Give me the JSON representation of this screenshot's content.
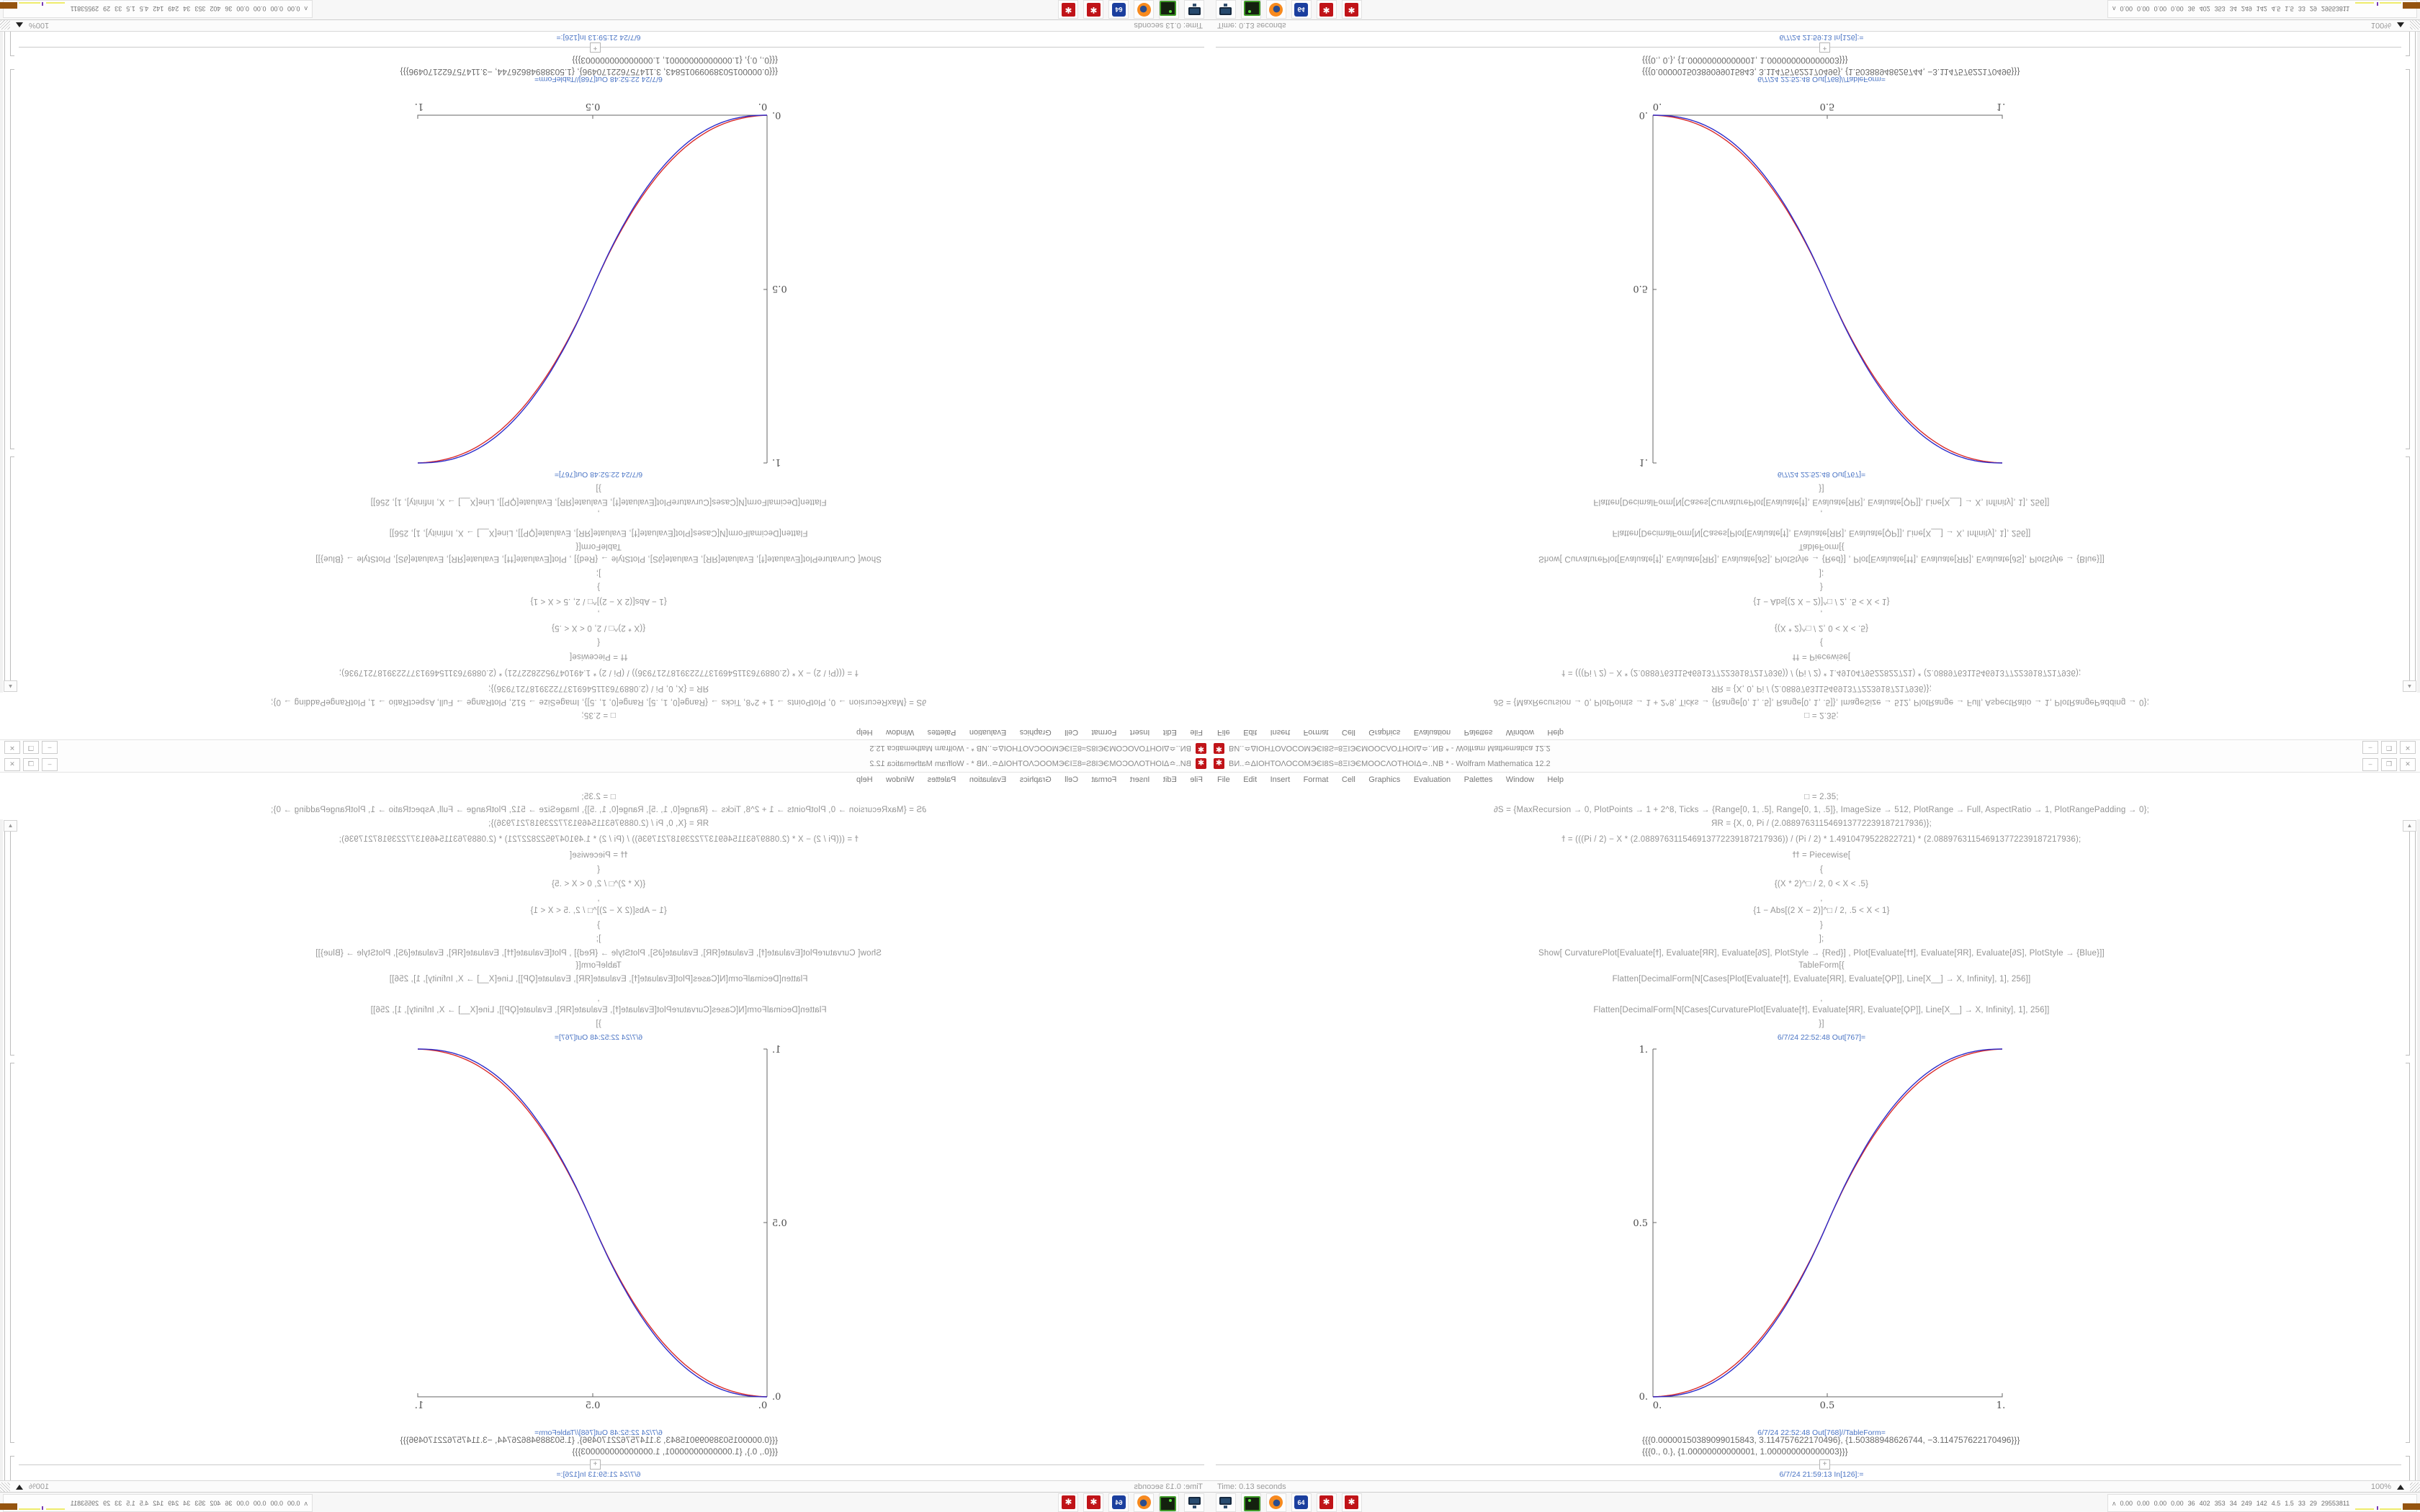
{
  "window": {
    "title": "ВИ..≏ΔΙΟΗΤΟΛΟϹΟΜЭЄΙ8S≈8ΞΙЭЄΜΟΟϹΛΟΤΗΟΙΔ≏..NB * - Wolfram Mathematica 12.2",
    "buttons": {
      "minimize": "–",
      "maximize": "❒",
      "close": "✕"
    },
    "menu": [
      "File",
      "Edit",
      "Insert",
      "Format",
      "Cell",
      "Graphics",
      "Evaluation",
      "Palettes",
      "Window",
      "Help"
    ]
  },
  "notebook": {
    "code_lines": [
      "□ = 2.35;",
      "∂S = {MaxRecursion → 0, PlotPoints → 1 + 2^8, Ticks → {Range[0, 1, .5], Range[0, 1, .5]}, ImageSize → 512, PlotRange → Full, AspectRatio → 1, PlotRangePadding → 0};",
      "ЯR = {X, 0, Pi / (2.088976311546913772239187217936)};",
      "ϯ = (((Pi / 2) − X * (2.088976311546913772239187217936)) / (Pi / 2) * 1.4910479522822721) * (2.088976311546913772239187217936);",
      "ϯϯ = Piecewise[",
      "{",
      "{(X * 2)^□ / 2, 0 < X < .5}",
      ",",
      "{1 − Abs[(2 X − 2)]^□ / 2, .5 < X < 1}",
      "}",
      "];",
      "Show[  CurvaturePlot[Evaluate[ϯ], Evaluate[ЯR], Evaluate[∂S], PlotStyle → {Red}]  ,  Plot[Evaluate[ϯϯ], Evaluate[ЯR], Evaluate[∂S], PlotStyle → {Blue}]]",
      "TableForm[{",
      "Flatten[DecimalForm[N[Cases[Plot[Evaluate[ϯ], Evaluate[ЯR], Evaluate[ϘΡ]], Line[X__] → X, Infinity], 1], 256]]",
      ",",
      "Flatten[DecimalForm[N[Cases[CurvaturePlot[Evaluate[ϯ], Evaluate[ЯR], Evaluate[ϘΡ]], Line[X__] → X, Infinity], 1], 256]]",
      "}]"
    ],
    "out_plot_label": "6/7/24 22:52:48 Out[767]=",
    "out_table_label": "6/7/24 22:52:48 Out[768]//TableForm=",
    "table_rows": [
      "{{{0.00000150389099015843, 3.114757622170496}, {1.50388948626744, −3.114757622170496}}}",
      "{{{0., 0.}, {1.00000000000001, 1.000000000000003}}}"
    ],
    "insert_plus": "+",
    "in_label": "6/7/24 21:59:13 In[126]:=",
    "status_time": "Time: 0.13 seconds",
    "zoom_level": "100%"
  },
  "chart_data": {
    "type": "line",
    "title": "Out[767]= smoothstep S-curve, red CurvaturePlot[ϯ] overlaid with blue Plot[ϯϯ]",
    "xlabel": "",
    "ylabel": "",
    "xlim": [
      0,
      1
    ],
    "ylim": [
      0,
      1
    ],
    "x_ticks": [
      "0.",
      "0.5",
      "1."
    ],
    "y_ticks": [
      "0.",
      "0.5",
      "1."
    ],
    "grid": false,
    "legend_position": "none",
    "exponent": 2.35,
    "x": [
      0,
      0.1,
      0.2,
      0.3,
      0.4,
      0.5,
      0.6,
      0.7,
      0.8,
      0.9,
      1.0
    ],
    "series": [
      {
        "name": "CurvaturePlot[ϯ]",
        "color": "#d92b2b",
        "values": [
          0,
          0.017,
          0.066,
          0.158,
          0.302,
          0.505,
          0.708,
          0.851,
          0.944,
          0.986,
          1.0
        ]
      },
      {
        "name": "Plot[ϯϯ]",
        "color": "#2d2dcb",
        "values": [
          0,
          0.011,
          0.058,
          0.151,
          0.296,
          0.5,
          0.704,
          0.849,
          0.942,
          0.989,
          1.0
        ]
      }
    ]
  },
  "taskbar": {
    "icons": [
      "computer-monitor",
      "green-drive",
      "firefox",
      "aida64",
      "mathematica",
      "mathematica"
    ],
    "tray_chevron": "ᴧ",
    "tray_values": [
      "0.00",
      "0.00",
      "0.00",
      "0.00",
      "36",
      "402",
      "353",
      "34",
      "249",
      "142",
      "4.5",
      "1.5",
      "33",
      "29",
      "29553811"
    ]
  },
  "quadrants": [
    {
      "position": "top-left",
      "transform": "rotate-180"
    },
    {
      "position": "top-right",
      "transform": "flip-vertical"
    },
    {
      "position": "bottom-left",
      "transform": "flip-horizontal"
    },
    {
      "position": "bottom-right",
      "transform": "none"
    }
  ]
}
